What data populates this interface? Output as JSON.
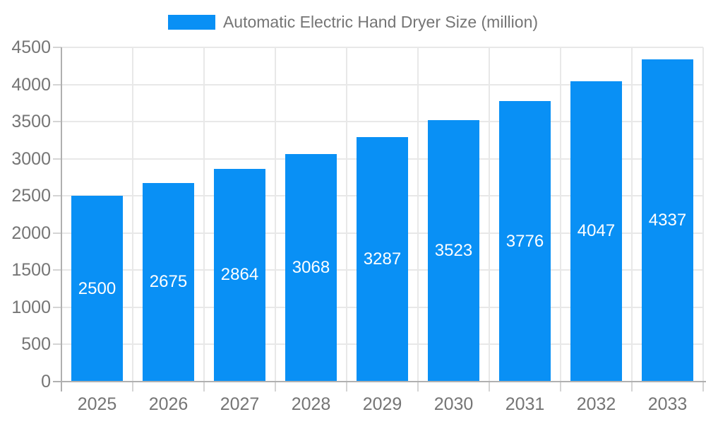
{
  "legend": {
    "label": "Automatic Electric Hand Dryer Size (million)"
  },
  "chart_data": {
    "type": "bar",
    "title": "Automatic Electric Hand Dryer Size (million)",
    "categories": [
      "2025",
      "2026",
      "2027",
      "2028",
      "2029",
      "2030",
      "2031",
      "2032",
      "2033"
    ],
    "values": [
      2500,
      2675,
      2864,
      3068,
      3287,
      3523,
      3776,
      4047,
      4337
    ],
    "series_name": "Automatic Electric Hand Dryer Size (million)",
    "xlabel": "",
    "ylabel": "",
    "ylim": [
      0,
      4500
    ],
    "ytick_step": 500,
    "ytick_labels": [
      "0",
      "500",
      "1000",
      "1500",
      "2000",
      "2500",
      "3000",
      "3500",
      "4000",
      "4500"
    ],
    "grid": true,
    "legend_position": "top-center",
    "value_labels": "inside-center",
    "colors": {
      "bar": "#0990F5",
      "value_label_text": "#ffffff",
      "tick_text": "#757575",
      "legend_text": "#757575",
      "axis_line": "#b0b0b0",
      "gridline": "#e8e8e8",
      "background": "#ffffff"
    }
  }
}
